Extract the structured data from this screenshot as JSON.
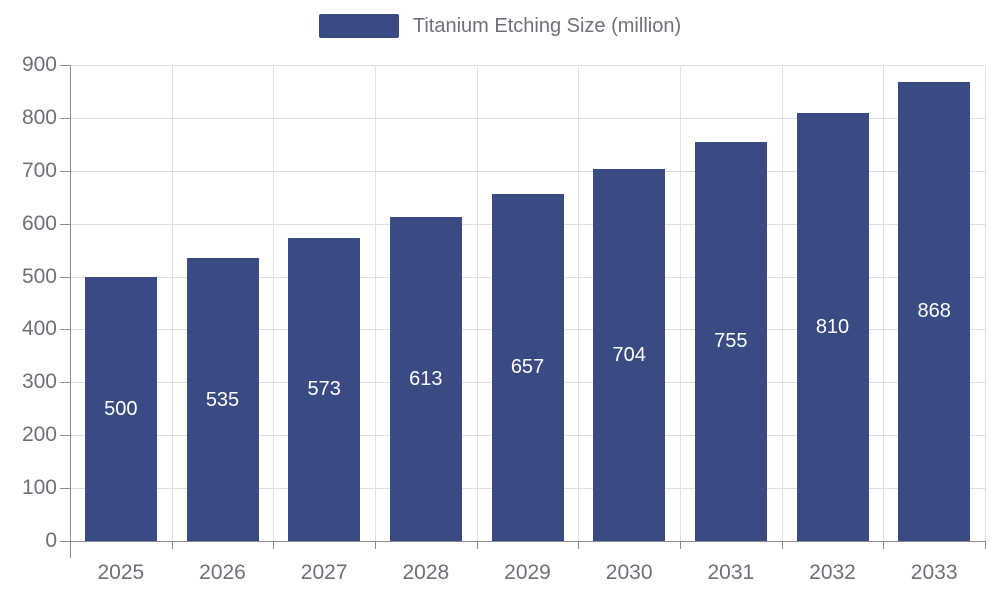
{
  "chart_data": {
    "type": "bar",
    "title": "",
    "legend": "Titanium Etching Size (million)",
    "legend_position": "top",
    "categories": [
      "2025",
      "2026",
      "2027",
      "2028",
      "2029",
      "2030",
      "2031",
      "2032",
      "2033"
    ],
    "values": [
      500,
      535,
      573,
      613,
      657,
      704,
      755,
      810,
      868
    ],
    "xlabel": "",
    "ylabel": "",
    "ylim": [
      0,
      900
    ],
    "yticks": [
      0,
      100,
      200,
      300,
      400,
      500,
      600,
      700,
      800,
      900
    ],
    "grid": "horizontal-and-vertical",
    "value_labels": "inside-bar-centered",
    "colors": {
      "bar": "#3A4A83",
      "value_label": "#FFFFFF",
      "text": "#6E7079",
      "grid": "#E0E0E3",
      "axis": "#8B8B90",
      "background": "#FFFFFF"
    }
  }
}
